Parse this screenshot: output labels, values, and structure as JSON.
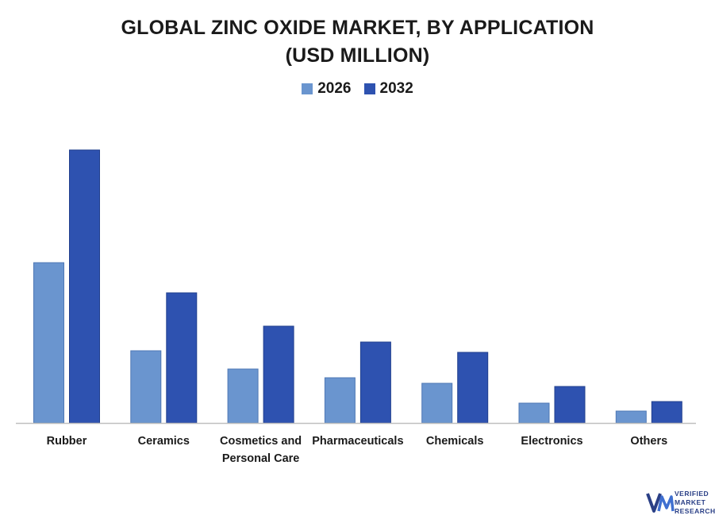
{
  "chart_data": {
    "type": "bar",
    "title_lines": [
      "GLOBAL ZINC OXIDE MARKET, BY APPLICATION",
      "(USD MILLION)"
    ],
    "categories": [
      "Rubber",
      "Ceramics",
      "Cosmetics and Personal Care",
      "Pharmaceuticals",
      "Chemicals",
      "Electronics",
      "Others"
    ],
    "series": [
      {
        "name": "2026",
        "values": [
          202,
          91,
          68,
          57,
          50,
          25,
          15
        ],
        "color": "#6a95cf"
      },
      {
        "name": "2032",
        "values": [
          344,
          164,
          122,
          102,
          89,
          46,
          27
        ],
        "color": "#2e52b0"
      }
    ],
    "ylim": [
      0,
      370
    ],
    "xlabel": "",
    "ylabel": "",
    "grid": false,
    "legend_position": "top-center"
  },
  "logo": {
    "line1": "VERIFIED",
    "line2": "MARKET",
    "line3": "RESEARCH",
    "color": "#2a3f86"
  }
}
